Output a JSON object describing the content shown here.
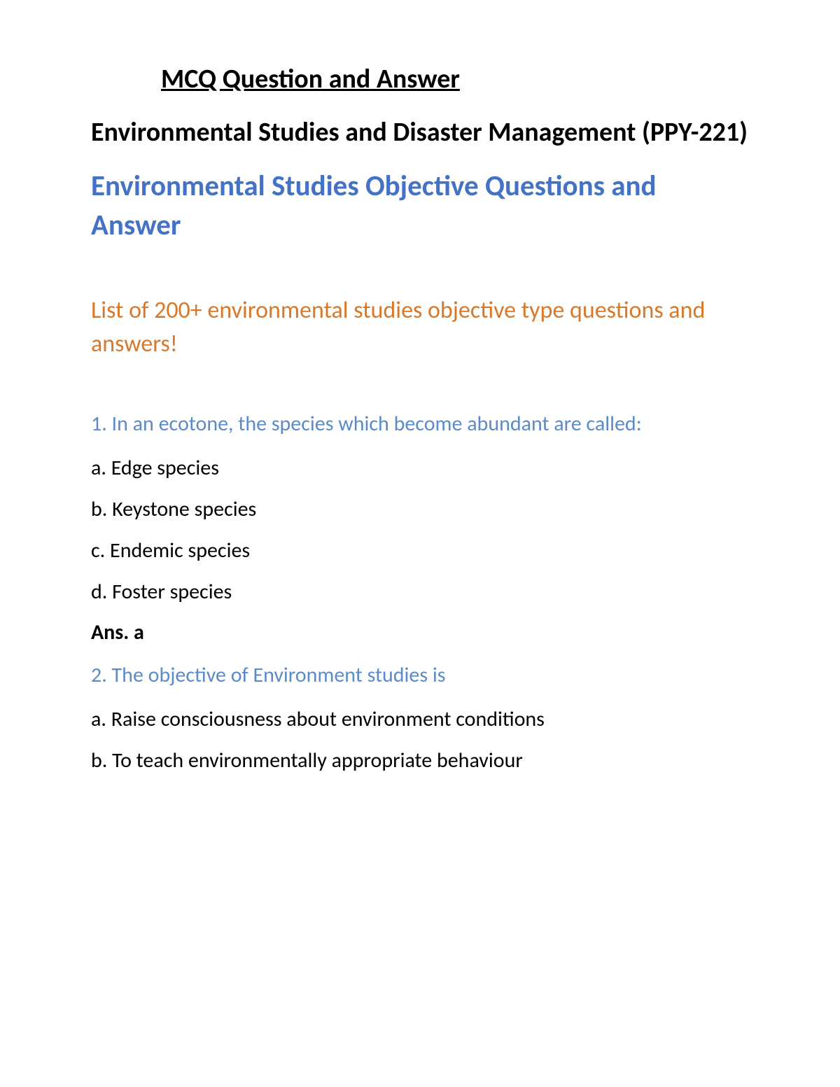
{
  "document": {
    "main_title": "MCQ Question and Answer",
    "subtitle": "Environmental Studies and Disaster Management (PPY-221)",
    "section_heading": "Environmental Studies Objective Questions and Answer",
    "list_intro": "List of 200+ environmental studies objective type questions and answers!",
    "colors": {
      "title_black": "#000000",
      "heading_blue": "#4472c4",
      "intro_orange": "#d97828",
      "question_blue": "#5b8bc9",
      "body_black": "#000000",
      "background": "#ffffff"
    },
    "typography": {
      "main_title_size": 38,
      "subtitle_size": 38,
      "section_heading_size": 41,
      "list_intro_size": 34,
      "question_size": 30,
      "option_size": 30,
      "answer_size": 30,
      "font_family": "Calibri"
    },
    "questions": [
      {
        "prompt": "1. In an ecotone, the species which become abundant are called:",
        "options": [
          "a. Edge species",
          "b. Keystone species",
          "c. Endemic species",
          "d. Foster species"
        ],
        "answer": "Ans. a"
      },
      {
        "prompt": "2. The objective of Environment studies is",
        "options": [
          "a. Raise consciousness about environment conditions",
          "b. To teach environmentally appropriate behaviour"
        ],
        "answer": ""
      }
    ]
  }
}
